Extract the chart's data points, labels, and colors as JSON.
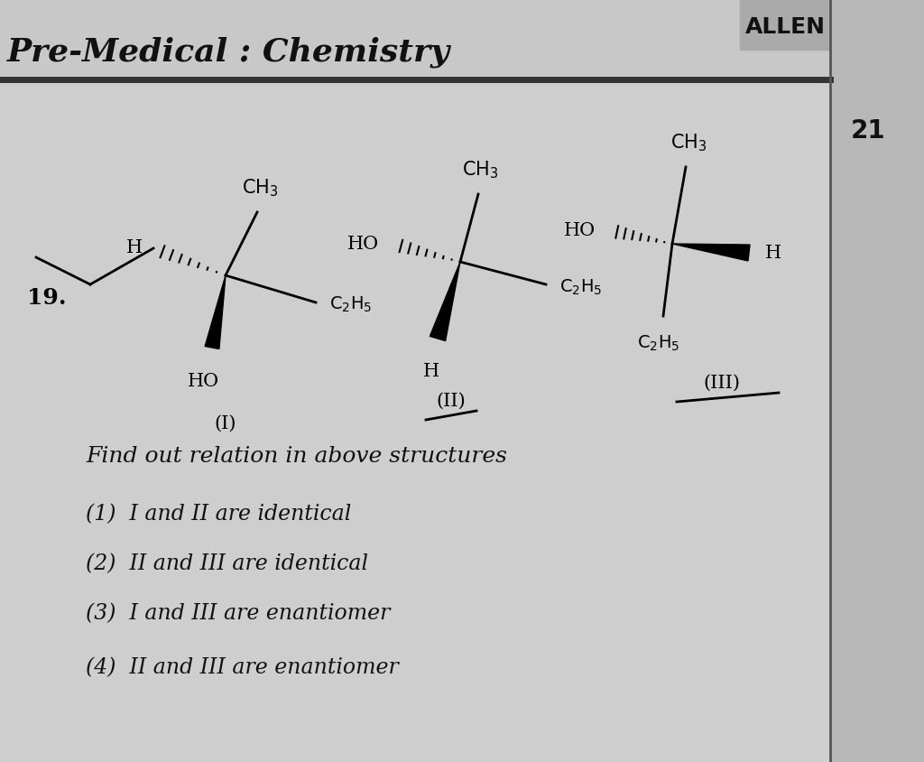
{
  "title": "Pre-Medical : Chemistry",
  "bg_color": "#d4d4d4",
  "main_bg": "#d0d0d0",
  "header_bg": "#c8c8c8",
  "question_number": "19.",
  "question_text": "Find out relation in above structures",
  "options": [
    "(1)  I and II are identical",
    "(2)  II and III are identical",
    "(3)  I and III are enantiomer",
    "(4)  II and III are enantiomer"
  ],
  "roman_labels": [
    "(I)",
    "(II)",
    "(III)"
  ],
  "allen_text": "ALLEN",
  "page_number": "21",
  "header_line_color": "#444444",
  "text_color": "#111111",
  "right_bar_color": "#b0b0b0",
  "allen_bg": "#cccccc"
}
